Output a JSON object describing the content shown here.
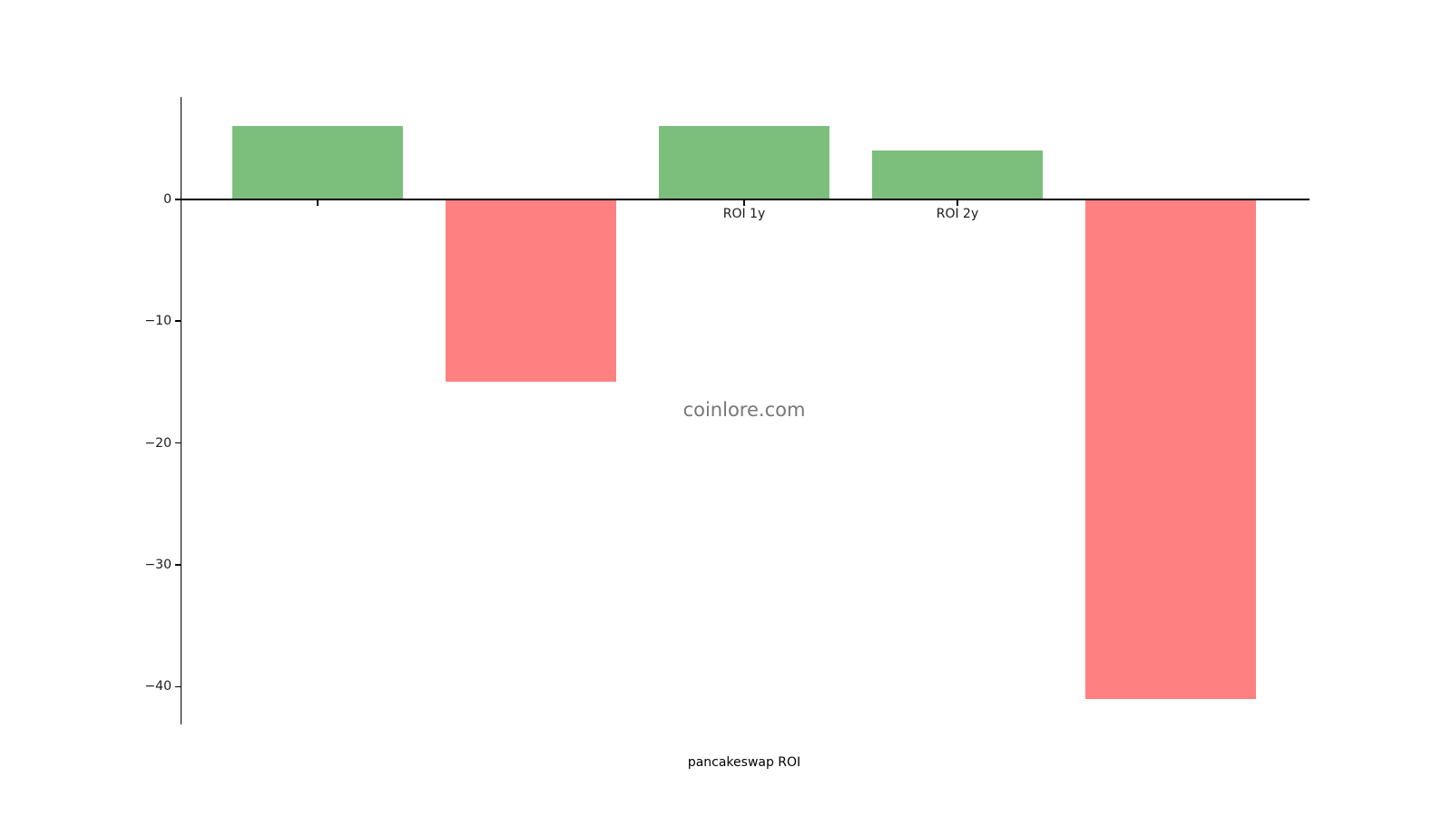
{
  "watermark": {
    "text": "coinlore.com",
    "color": "#777777"
  },
  "chart_data": {
    "type": "bar",
    "title": "pancakeswap ROI",
    "xlabel": "pancakeswap ROI",
    "ylabel": "",
    "categories": [
      "",
      "",
      "ROI 1y",
      "ROI 2y",
      ""
    ],
    "values": [
      6,
      -15,
      6,
      4,
      -41
    ],
    "yticks": [
      0,
      -10,
      -20,
      -30,
      -40
    ],
    "ylim": [
      -43.1,
      8.4
    ],
    "grid": false,
    "legend": false,
    "positive_color": "#7cbe7c",
    "negative_color": "#ff8080",
    "axis_color": "#000000",
    "tick_label_color": "#1a1a1a",
    "watermark": "coinlore.com"
  }
}
